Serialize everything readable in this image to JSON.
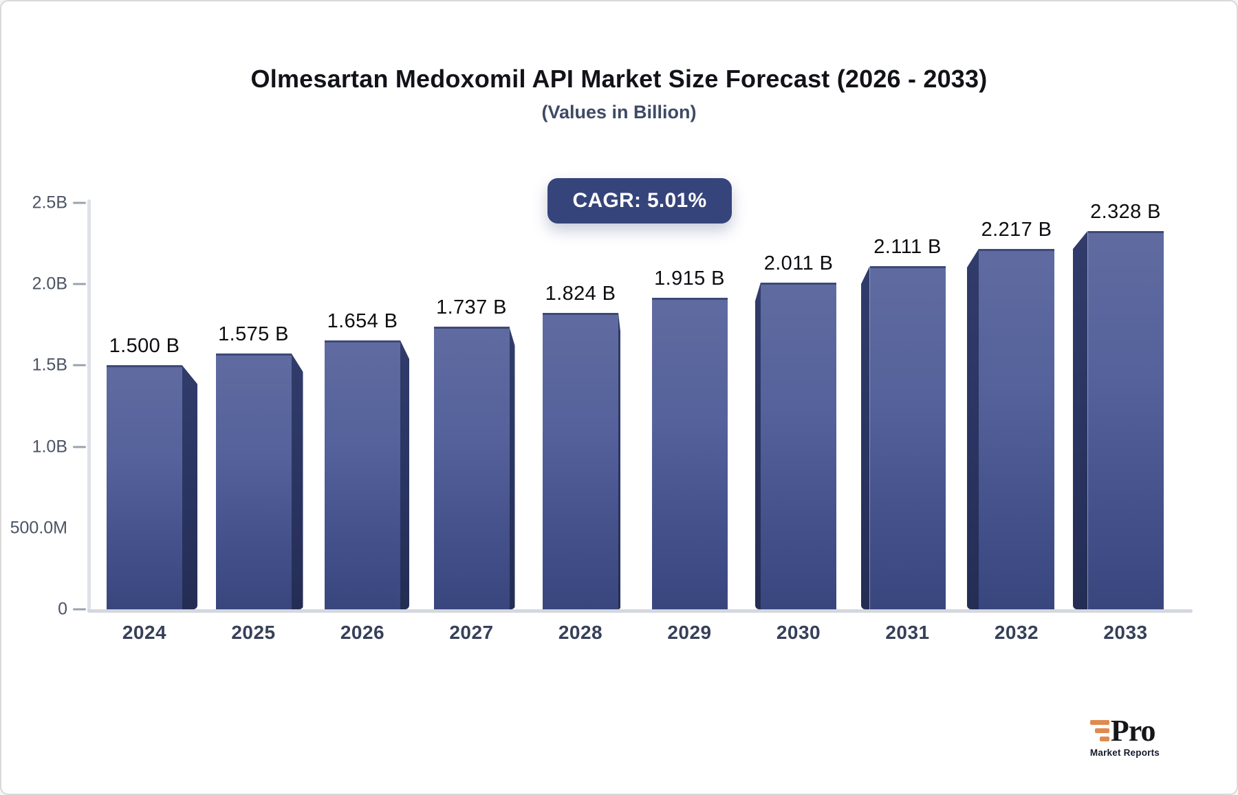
{
  "header": {
    "title": "Olmesartan Medoxomil API Market Size Forecast (2026 - 2033)",
    "subtitle": "(Values in Billion)"
  },
  "badge": {
    "label": "CAGR: 5.01%"
  },
  "chart_data": {
    "type": "bar",
    "title": "Olmesartan Medoxomil API Market Size Forecast (2026 - 2033)",
    "subtitle": "(Values in Billion)",
    "cagr": "5.01%",
    "categories": [
      "2024",
      "2025",
      "2026",
      "2027",
      "2028",
      "2029",
      "2030",
      "2031",
      "2032",
      "2033"
    ],
    "values": [
      1.5,
      1.575,
      1.654,
      1.737,
      1.824,
      1.915,
      2.011,
      2.111,
      2.217,
      2.328
    ],
    "value_labels": [
      "1.500 B",
      "1.575 B",
      "1.654 B",
      "1.737 B",
      "1.824 B",
      "1.915 B",
      "2.011 B",
      "2.111 B",
      "2.217 B",
      "2.328 B"
    ],
    "xlabel": "",
    "ylabel": "",
    "ylim": [
      0,
      2.5
    ],
    "yticks": [
      {
        "label": "2.5B",
        "value": 2.5,
        "dash": true
      },
      {
        "label": "2.0B",
        "value": 2.0,
        "dash": true
      },
      {
        "label": "1.5B",
        "value": 1.5,
        "dash": true
      },
      {
        "label": "1.0B",
        "value": 1.0,
        "dash": true
      },
      {
        "label": "500.0M",
        "value": 0.5,
        "dash": false
      },
      {
        "label": "0",
        "value": 0.0,
        "dash": true
      }
    ],
    "grid": false,
    "legend": "none",
    "bar_style": "3d-perspective"
  },
  "colors": {
    "bar_face_top": "#5f6ba0",
    "bar_face_bottom": "#39467e",
    "bar_side": "#2a3461",
    "badge_background": "#35457b",
    "badge_text": "#ffffff",
    "axis": "#d4d7de",
    "logo_accent_orange": "#e08a4f"
  },
  "branding": {
    "name": "Pro",
    "tagline": "Market Reports"
  }
}
